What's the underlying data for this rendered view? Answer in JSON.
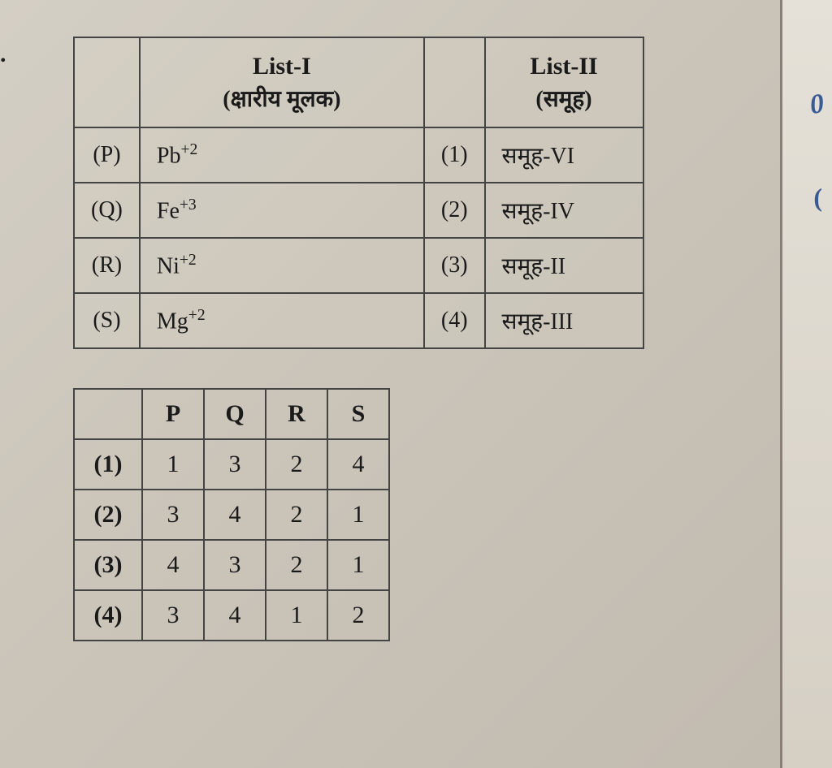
{
  "question_num": ".",
  "main_table": {
    "header": {
      "list1_line1": "List-I",
      "list1_line2": "(क्षारीय मूलक)",
      "list2_line1": "List-II",
      "list2_line2": "(समूह)"
    },
    "rows": [
      {
        "p_label": "(P)",
        "l1_base": "Pb",
        "l1_sup": "+2",
        "num": "(1)",
        "l2": "समूह-VI"
      },
      {
        "p_label": "(Q)",
        "l1_base": "Fe",
        "l1_sup": "+3",
        "num": "(2)",
        "l2": "समूह-IV"
      },
      {
        "p_label": "(R)",
        "l1_base": "Ni",
        "l1_sup": "+2",
        "num": "(3)",
        "l2": "समूह-II"
      },
      {
        "p_label": "(S)",
        "l1_base": "Mg",
        "l1_sup": "+2",
        "num": "(4)",
        "l2": "समूह-III"
      }
    ]
  },
  "answer_table": {
    "headers": [
      "P",
      "Q",
      "R",
      "S"
    ],
    "options": [
      {
        "label": "(1)",
        "vals": [
          "1",
          "3",
          "2",
          "4"
        ]
      },
      {
        "label": "(2)",
        "vals": [
          "3",
          "4",
          "2",
          "1"
        ]
      },
      {
        "label": "(3)",
        "vals": [
          "4",
          "3",
          "2",
          "1"
        ]
      },
      {
        "label": "(4)",
        "vals": [
          "3",
          "4",
          "1",
          "2"
        ]
      }
    ]
  },
  "styling": {
    "page_bg": "#cbc5ba",
    "border_color": "#444",
    "text_color": "#1a1a1a",
    "ink_color": "#3a5a94",
    "font_family": "Times New Roman",
    "header_fontsize": 30,
    "cell_fontsize": 28,
    "answer_fontsize": 30
  },
  "scribbles": {
    "s1": "0",
    "s2": "("
  }
}
